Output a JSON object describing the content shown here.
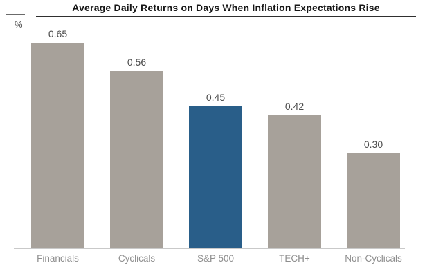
{
  "title": "Average Daily Returns on Days When Inflation Expectations Rise",
  "y_axis_unit": "%",
  "chart_data": {
    "type": "bar",
    "title": "Average Daily Returns on Days When Inflation Expectations Rise",
    "ylabel": "%",
    "xlabel": "",
    "categories": [
      "Financials",
      "Cyclicals",
      "S&P 500",
      "TECH+",
      "Non-Cyclicals"
    ],
    "values": [
      0.65,
      0.56,
      0.45,
      0.42,
      0.3
    ],
    "value_labels": [
      "0.65",
      "0.56",
      "0.45",
      "0.42",
      "0.30"
    ],
    "highlight_index": 2,
    "colors": {
      "default": "#a7a19a",
      "highlight": "#295e89"
    },
    "ylim": [
      0,
      0.7
    ],
    "grid": false,
    "legend": "none"
  }
}
